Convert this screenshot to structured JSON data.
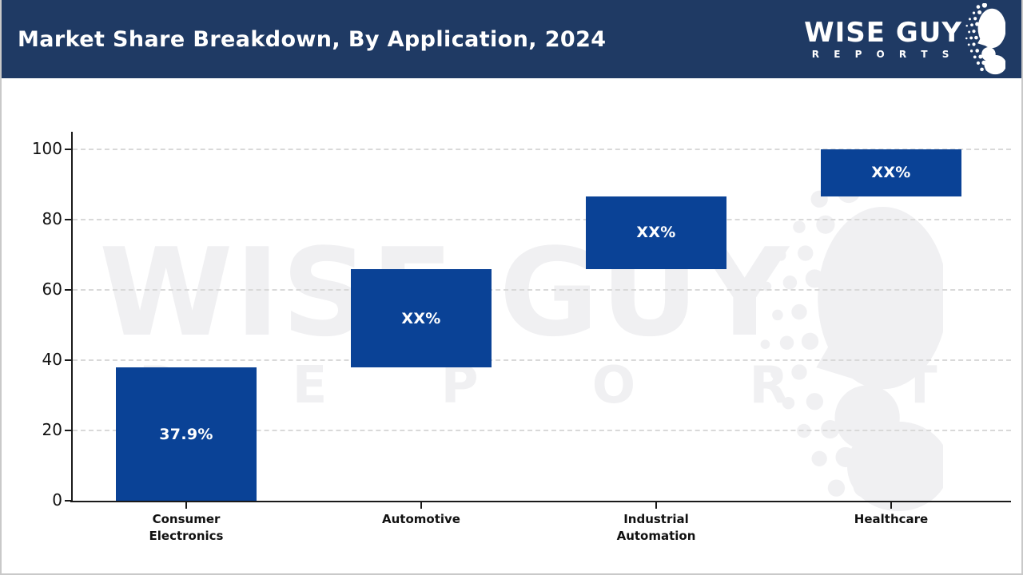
{
  "header": {
    "title": "Market Share Breakdown, By Application, 2024",
    "logo": {
      "line1": "WISE GUY",
      "line2": "R E P O R T S"
    }
  },
  "watermark": {
    "line1": "WISE GUY",
    "line2": "R E P O R T S"
  },
  "chart_data": {
    "type": "bar",
    "subtype": "floating-waterfall",
    "title": "Market Share Breakdown, By Application, 2024",
    "categories": [
      "Consumer Electronics",
      "Automotive",
      "Industrial Automation",
      "Healthcare"
    ],
    "segments": [
      {
        "category": "Consumer Electronics",
        "start": 0,
        "end": 37.9,
        "label": "37.9%"
      },
      {
        "category": "Automotive",
        "start": 37.9,
        "end": 65.9,
        "label": "XX%"
      },
      {
        "category": "Industrial Automation",
        "start": 65.9,
        "end": 86.6,
        "label": "XX%"
      },
      {
        "category": "Healthcare",
        "start": 86.6,
        "end": 100,
        "label": "XX%"
      }
    ],
    "xlabel": "",
    "ylabel": "",
    "ylim": [
      0,
      100
    ],
    "yticks": [
      0,
      20,
      40,
      60,
      80,
      100
    ],
    "grid": "horizontal dashed",
    "legend": "none",
    "colors": {
      "bar": "#0a4296",
      "bar_label": "#ffffff",
      "header_bg": "#1f3a64",
      "axis": "#1a1a1a",
      "gridline": "#d9d9d9",
      "watermark": "#f0f0f2"
    }
  }
}
